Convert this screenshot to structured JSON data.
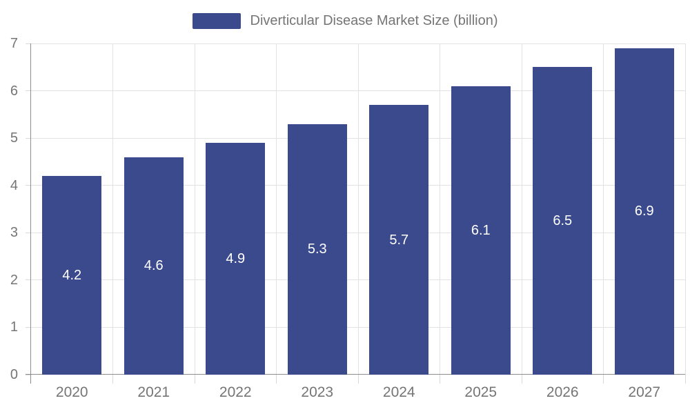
{
  "legend": {
    "label": "Diverticular Disease Market Size (billion)"
  },
  "chart_data": {
    "type": "bar",
    "title": "Diverticular Disease Market Size (billion)",
    "categories": [
      "2020",
      "2021",
      "2022",
      "2023",
      "2024",
      "2025",
      "2026",
      "2027"
    ],
    "values": [
      4.2,
      4.6,
      4.9,
      5.3,
      5.7,
      6.1,
      6.5,
      6.9
    ],
    "value_labels": [
      "4.2",
      "4.6",
      "4.9",
      "5.3",
      "5.7",
      "6.1",
      "6.5",
      "6.9"
    ],
    "xlabel": "",
    "ylabel": "",
    "ylim": [
      0,
      7
    ],
    "yticks": [
      0,
      1,
      2,
      3,
      4,
      5,
      6,
      7
    ],
    "grid": true,
    "legend_position": "top-center",
    "value_label_position": "inside-middle"
  },
  "colors": {
    "bar": "#3A4A8C",
    "value_label": "#FFFFFF",
    "axis": "#8C8C8C",
    "grid": "#E2E2E2",
    "tick": "#D8D8D8",
    "text": "#757575"
  }
}
